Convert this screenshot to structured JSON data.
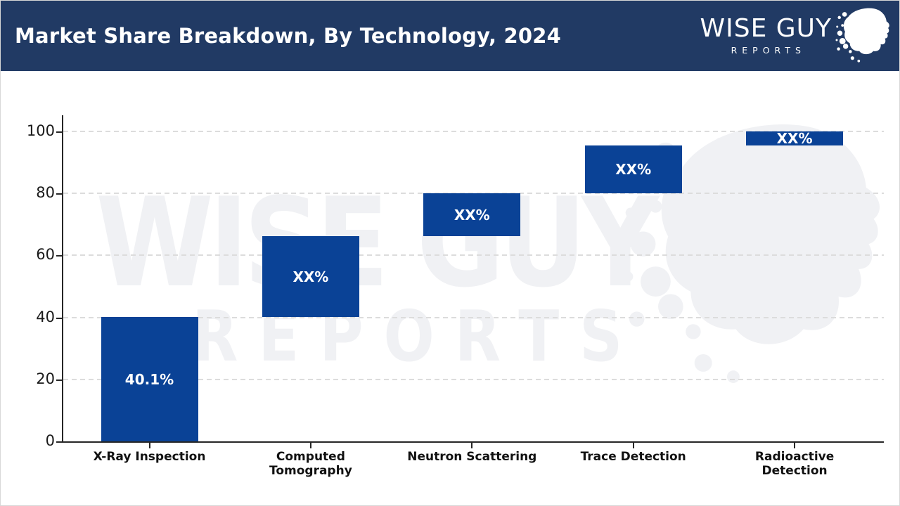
{
  "header": {
    "title": "Market Share Breakdown, By Technology, 2024",
    "logo": {
      "name": "WISE GUY",
      "tagline": "REPORTS",
      "icon": "wiseguy-dot-face-icon"
    }
  },
  "watermark": {
    "line1": "WISE GUY",
    "line2": "REPORTS",
    "icon": "wiseguy-dot-face-icon"
  },
  "colors": {
    "header_bg": "#213a64",
    "bar": "#0a4296",
    "axis": "#262626",
    "gridline": "#dcdcdc",
    "value_label": "#ffffff",
    "watermark": "#f0f1f4"
  },
  "chart_data": {
    "type": "bar",
    "subtype": "waterfall",
    "title": "Market Share Breakdown, By Technology, 2024",
    "categories": [
      "X-Ray Inspection",
      "Computed Tomography",
      "Neutron Scattering",
      "Trace Detection",
      "Radioactive Detection"
    ],
    "category_lines": [
      [
        "X-Ray Inspection"
      ],
      [
        "Computed",
        "Tomography"
      ],
      [
        "Neutron Scattering"
      ],
      [
        "Trace Detection"
      ],
      [
        "Radioactive",
        "Detection"
      ]
    ],
    "segments": [
      {
        "category": "X-Ray Inspection",
        "label": "40.1%",
        "start": 0,
        "end": 40.1
      },
      {
        "category": "Computed Tomography",
        "label": "XX%",
        "start": 40.1,
        "end": 66.2
      },
      {
        "category": "Neutron Scattering",
        "label": "XX%",
        "start": 66.2,
        "end": 80.0
      },
      {
        "category": "Trace Detection",
        "label": "XX%",
        "start": 80.0,
        "end": 95.5
      },
      {
        "category": "Radioactive Detection",
        "label": "XX%",
        "start": 95.5,
        "end": 100
      }
    ],
    "ylim": [
      0,
      105
    ],
    "yticks": [
      0,
      20,
      40,
      60,
      80,
      100
    ],
    "xlabel": "",
    "ylabel": "",
    "grid": "horizontal-dashed",
    "legend": "none"
  }
}
